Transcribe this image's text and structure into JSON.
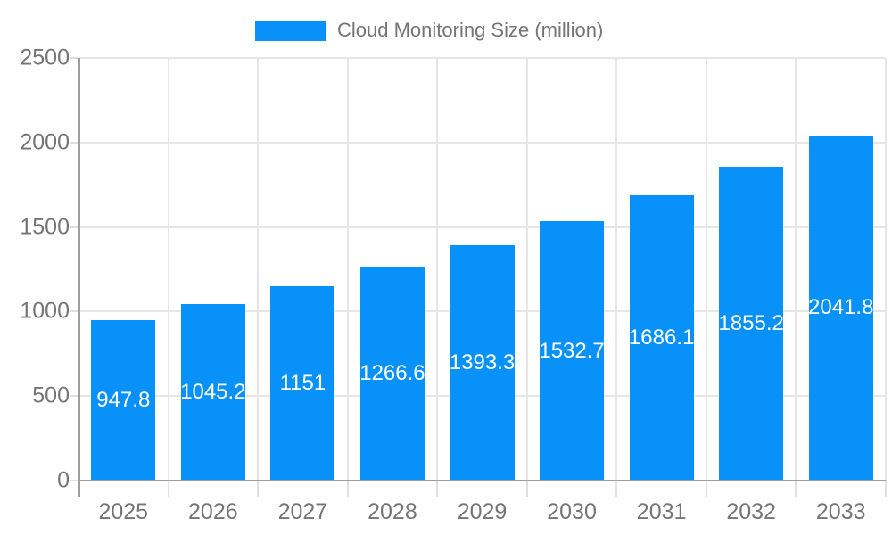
{
  "legend": {
    "label": "Cloud Monitoring Size (million)"
  },
  "colors": {
    "bar": "#0991fa",
    "grid": "#e6e6e6",
    "axis": "#9e9e9e",
    "tick": "#e0e0e0",
    "text": "#757575",
    "bar_label": "#ffffff",
    "background": "#ffffff"
  },
  "chart_data": {
    "type": "bar",
    "title": "",
    "categories": [
      "2025",
      "2026",
      "2027",
      "2028",
      "2029",
      "2030",
      "2031",
      "2032",
      "2033"
    ],
    "series": [
      {
        "name": "Cloud Monitoring Size (million)",
        "values": [
          947.8,
          1045.2,
          1151,
          1266.6,
          1393.3,
          1532.7,
          1686.1,
          1855.2,
          2041.8
        ]
      }
    ],
    "bar_value_labels": [
      "947.8",
      "1045.2",
      "1151",
      "1266.6",
      "1393.3",
      "1532.7",
      "1686.1",
      "1855.2",
      "2041.8"
    ],
    "xlabel": "",
    "ylabel": "",
    "ylim": [
      0,
      2500
    ],
    "ytick_step": 500,
    "ytick_labels": [
      "0",
      "500",
      "1000",
      "1500",
      "2000",
      "2500"
    ],
    "grid": true,
    "legend_position": "top",
    "bar_labels_inside": true
  }
}
